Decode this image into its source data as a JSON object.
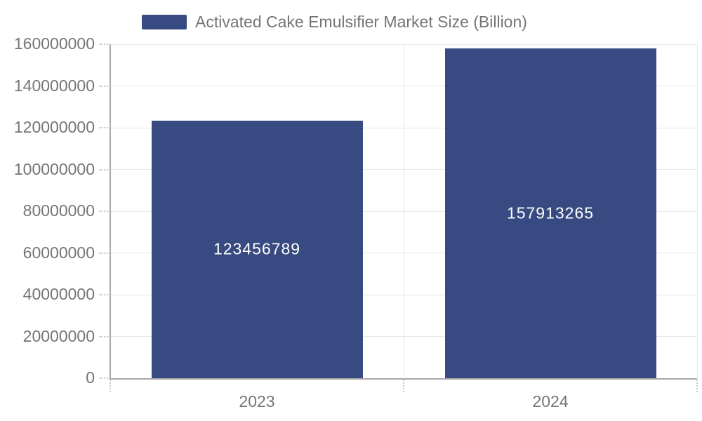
{
  "legend": {
    "label": "Activated Cake Emulsifier Market Size (Billion)"
  },
  "chart_data": {
    "type": "bar",
    "title": "Activated Cake Emulsifier Market Size (Billion)",
    "legend_entries": [
      "Activated Cake Emulsifier Market Size (Billion)"
    ],
    "legend_position": "top-left",
    "categories": [
      "2023",
      "2024"
    ],
    "values": [
      123456789,
      157913265
    ],
    "data_labels": [
      "123456789",
      "157913265"
    ],
    "xlabel": "",
    "ylabel": "",
    "ylim": [
      0,
      160000000
    ],
    "yticks": [
      0,
      20000000,
      40000000,
      60000000,
      80000000,
      100000000,
      120000000,
      140000000,
      160000000
    ],
    "ytick_labels": [
      "0",
      "20000000",
      "40000000",
      "60000000",
      "80000000",
      "100000000",
      "120000000",
      "140000000",
      "160000000"
    ],
    "grid": true,
    "bar_color": "#374a81"
  },
  "colors": {
    "bar": "#374a81",
    "grid": "#e7e7e7",
    "axis_line": "#a8a8a8",
    "tick_text": "#757575",
    "value_label_text": "#ffffff",
    "background": "#ffffff"
  }
}
